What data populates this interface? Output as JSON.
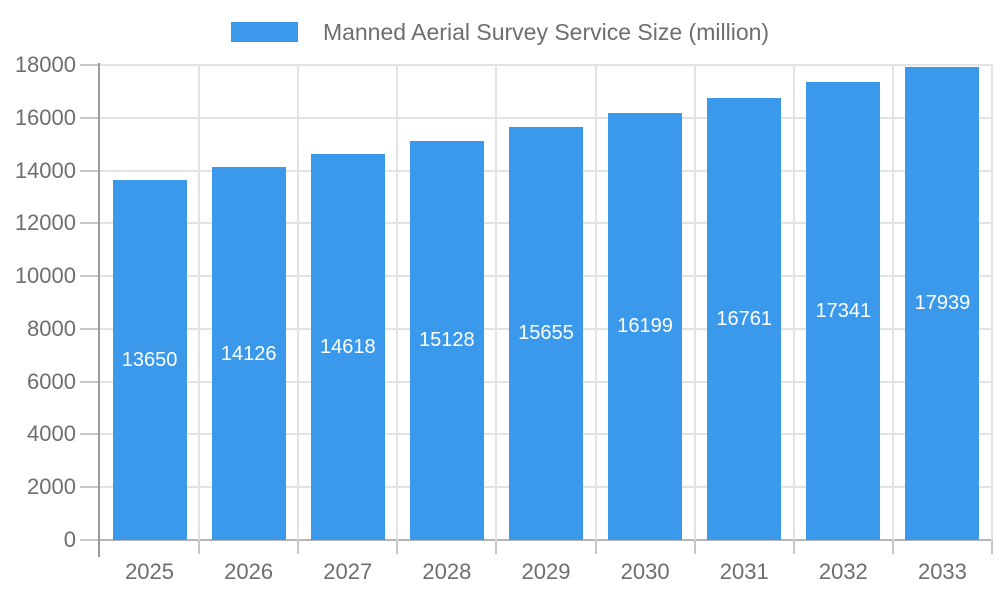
{
  "chart_data": {
    "type": "bar",
    "title": "",
    "series_name": "Manned Aerial Survey Service Size (million)",
    "categories": [
      "2025",
      "2026",
      "2027",
      "2028",
      "2029",
      "2030",
      "2031",
      "2032",
      "2033"
    ],
    "values": [
      13650,
      14126,
      14618,
      15128,
      15655,
      16199,
      16761,
      17341,
      17939
    ],
    "xlabel": "",
    "ylabel": "",
    "ylim": [
      0,
      18000
    ],
    "yticks": [
      0,
      2000,
      4000,
      6000,
      8000,
      10000,
      12000,
      14000,
      16000,
      18000
    ],
    "grid": true,
    "legend_position": "top-center",
    "bar_labels_position": "inside-center",
    "colors": {
      "bar": "#3B99EC",
      "bar_label_text": "#FFFFFF",
      "axis_text": "#6E6E6E",
      "gridline": "#E3E3E3",
      "baseline": "#B5B5B5",
      "tick": "#C6C6C6",
      "axis_line": "#9A9A9A",
      "background": "#FFFFFF"
    }
  }
}
